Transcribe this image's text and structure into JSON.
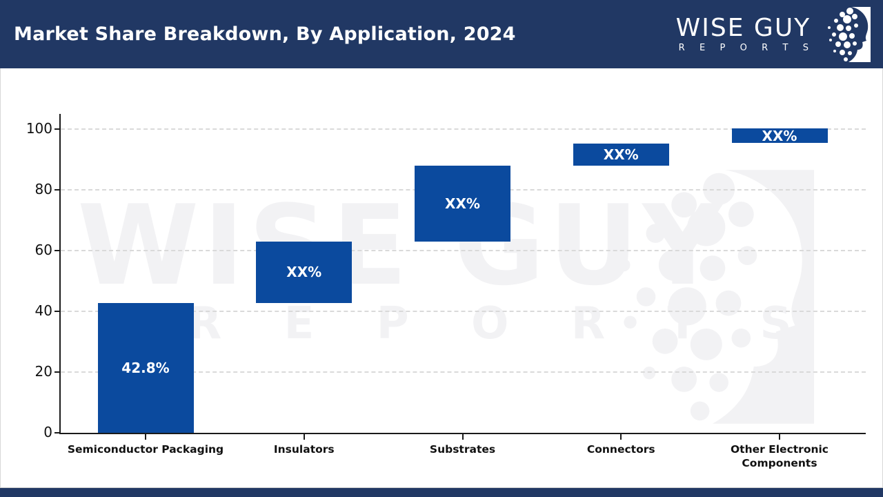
{
  "header": {
    "title": "Market Share Breakdown, By Application, 2024",
    "bg_color": "#213864",
    "text_color": "#FFFFFF",
    "logo": {
      "line1": "WISE GUY",
      "line2": "REPORTS"
    }
  },
  "watermark": {
    "line1": "WISE GUY",
    "line2": "REPORTS"
  },
  "footer": {
    "bg_color": "#213864"
  },
  "chart_data": {
    "type": "bar",
    "subtype": "waterfall",
    "title": "Market Share Breakdown, By Application, 2024",
    "categories": [
      "Semiconductor Packaging",
      "Insulators",
      "Substrates",
      "Connectors",
      "Other Electronic Components"
    ],
    "segments": [
      {
        "category": "Semiconductor Packaging",
        "start": 0,
        "end": 42.8,
        "label": "42.8%"
      },
      {
        "category": "Insulators",
        "start": 42.8,
        "end": 63.0,
        "label": "XX%"
      },
      {
        "category": "Substrates",
        "start": 63.0,
        "end": 88.0,
        "label": "XX%"
      },
      {
        "category": "Connectors",
        "start": 88.0,
        "end": 95.2,
        "label": "XX%"
      },
      {
        "category": "Other Electronic Components",
        "start": 95.4,
        "end": 100.2,
        "label": "XX%"
      }
    ],
    "y_ticks": [
      0,
      20,
      40,
      60,
      80,
      100
    ],
    "ylim": [
      0,
      105
    ],
    "grid": "dashed-horizontal",
    "legend": "none",
    "xlabel": "",
    "ylabel": "",
    "bar_color": "#0B4A9E",
    "bar_label_color": "#FFFFFF",
    "axis_color": "#1A1A1A",
    "grid_color": "#D9D9D9"
  }
}
